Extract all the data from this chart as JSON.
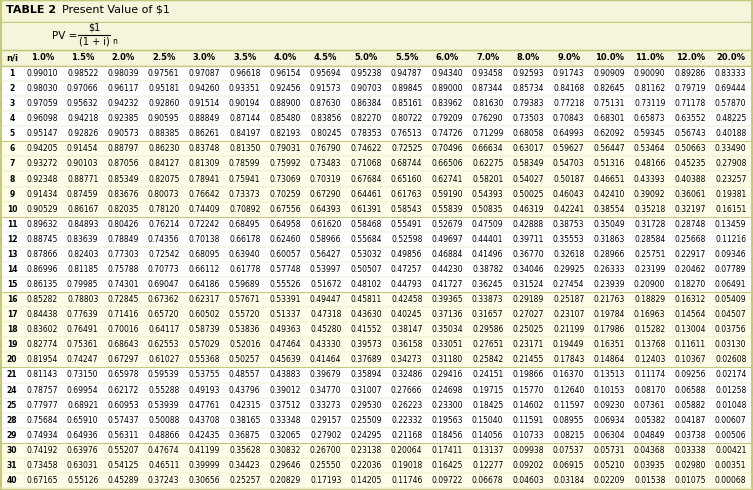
{
  "title_bold": "TABLE 2",
  "title_rest": "  Present Value of $1",
  "col_headers": [
    "n/i",
    "1.0%",
    "1.5%",
    "2.0%",
    "2.5%",
    "3.0%",
    "3.5%",
    "4.0%",
    "4.5%",
    "5.0%",
    "5.5%",
    "6.0%",
    "7.0%",
    "8.0%",
    "9.0%",
    "10.0%",
    "11.0%",
    "12.0%",
    "20.0%"
  ],
  "rows": [
    [
      1,
      0.9901,
      0.98522,
      0.98039,
      0.97561,
      0.97087,
      0.96618,
      0.96154,
      0.95694,
      0.95238,
      0.94787,
      0.9434,
      0.93458,
      0.92593,
      0.91743,
      0.90909,
      0.9009,
      0.89286,
      0.83333
    ],
    [
      2,
      0.9803,
      0.97066,
      0.96117,
      0.95181,
      0.9426,
      0.93351,
      0.92456,
      0.91573,
      0.90703,
      0.89845,
      0.89,
      0.87344,
      0.85734,
      0.84168,
      0.82645,
      0.81162,
      0.79719,
      0.69444
    ],
    [
      3,
      0.97059,
      0.95632,
      0.94232,
      0.9286,
      0.91514,
      0.90194,
      0.889,
      0.8763,
      0.86384,
      0.85161,
      0.83962,
      0.8163,
      0.79383,
      0.77218,
      0.75131,
      0.73119,
      0.71178,
      0.5787
    ],
    [
      4,
      0.96098,
      0.94218,
      0.92385,
      0.90595,
      0.88849,
      0.87144,
      0.8548,
      0.83856,
      0.8227,
      0.80722,
      0.79209,
      0.7629,
      0.73503,
      0.70843,
      0.68301,
      0.65873,
      0.63552,
      0.48225
    ],
    [
      5,
      0.95147,
      0.92826,
      0.90573,
      0.88385,
      0.86261,
      0.84197,
      0.82193,
      0.80245,
      0.78353,
      0.76513,
      0.74726,
      0.71299,
      0.68058,
      0.64993,
      0.62092,
      0.59345,
      0.56743,
      0.40188
    ],
    [
      6,
      0.94205,
      0.91454,
      0.88797,
      0.8623,
      0.83748,
      0.8135,
      0.79031,
      0.7679,
      0.74622,
      0.72525,
      0.70496,
      0.66634,
      0.63017,
      0.59627,
      0.56447,
      0.53464,
      0.50663,
      0.3349
    ],
    [
      7,
      0.93272,
      0.90103,
      0.87056,
      0.84127,
      0.81309,
      0.78599,
      0.75992,
      0.73483,
      0.71068,
      0.68744,
      0.66506,
      0.62275,
      0.58349,
      0.54703,
      0.51316,
      0.48166,
      0.45235,
      0.27908
    ],
    [
      8,
      0.92348,
      0.88771,
      0.85349,
      0.82075,
      0.78941,
      0.75941,
      0.73069,
      0.70319,
      0.67684,
      0.6516,
      0.62741,
      0.58201,
      0.54027,
      0.50187,
      0.46651,
      0.43393,
      0.40388,
      0.23257
    ],
    [
      9,
      0.91434,
      0.87459,
      0.83676,
      0.80073,
      0.76642,
      0.73373,
      0.70259,
      0.6729,
      0.64461,
      0.61763,
      0.5919,
      0.54393,
      0.50025,
      0.46043,
      0.4241,
      0.39092,
      0.36061,
      0.19381
    ],
    [
      10,
      0.90529,
      0.86167,
      0.82035,
      0.7812,
      0.74409,
      0.70892,
      0.67556,
      0.64393,
      0.61391,
      0.58543,
      0.55839,
      0.50835,
      0.46319,
      0.42241,
      0.38554,
      0.35218,
      0.32197,
      0.16151
    ],
    [
      11,
      0.89632,
      0.84893,
      0.80426,
      0.76214,
      0.72242,
      0.68495,
      0.64958,
      0.6162,
      0.58468,
      0.55491,
      0.52679,
      0.47509,
      0.42888,
      0.38753,
      0.35049,
      0.31728,
      0.28748,
      0.13459
    ],
    [
      12,
      0.88745,
      0.83639,
      0.78849,
      0.74356,
      0.70138,
      0.66178,
      0.6246,
      0.58966,
      0.55684,
      0.52598,
      0.49697,
      0.44401,
      0.39711,
      0.35553,
      0.31863,
      0.28584,
      0.25668,
      0.11216
    ],
    [
      13,
      0.87866,
      0.82403,
      0.77303,
      0.72542,
      0.68095,
      0.6394,
      0.60057,
      0.56427,
      0.53032,
      0.49856,
      0.46884,
      0.41496,
      0.3677,
      0.32618,
      0.28966,
      0.25751,
      0.22917,
      0.09346
    ],
    [
      14,
      0.86996,
      0.81185,
      0.75788,
      0.70773,
      0.66112,
      0.61778,
      0.57748,
      0.53997,
      0.50507,
      0.47257,
      0.4423,
      0.38782,
      0.34046,
      0.29925,
      0.26333,
      0.23199,
      0.20462,
      0.07789
    ],
    [
      15,
      0.86135,
      0.79985,
      0.74301,
      0.69047,
      0.64186,
      0.59689,
      0.55526,
      0.51672,
      0.48102,
      0.44793,
      0.41727,
      0.36245,
      0.31524,
      0.27454,
      0.23939,
      0.209,
      0.1827,
      0.06491
    ],
    [
      16,
      0.85282,
      0.78803,
      0.72845,
      0.67362,
      0.62317,
      0.57671,
      0.53391,
      0.49447,
      0.45811,
      0.42458,
      0.39365,
      0.33873,
      0.29189,
      0.25187,
      0.21763,
      0.18829,
      0.16312,
      0.05409
    ],
    [
      17,
      0.84438,
      0.77639,
      0.71416,
      0.6572,
      0.60502,
      0.5572,
      0.51337,
      0.47318,
      0.4363,
      0.40245,
      0.37136,
      0.31657,
      0.27027,
      0.23107,
      0.19784,
      0.16963,
      0.14564,
      0.04507
    ],
    [
      18,
      0.83602,
      0.76491,
      0.70016,
      0.64117,
      0.58739,
      0.53836,
      0.49363,
      0.4528,
      0.41552,
      0.38147,
      0.35034,
      0.29586,
      0.25025,
      0.21199,
      0.17986,
      0.15282,
      0.13004,
      0.03756
    ],
    [
      19,
      0.82774,
      0.75361,
      0.68643,
      0.62553,
      0.57029,
      0.52016,
      0.47464,
      0.4333,
      0.39573,
      0.36158,
      0.33051,
      0.27651,
      0.23171,
      0.19449,
      0.16351,
      0.13768,
      0.11611,
      0.0313
    ],
    [
      20,
      0.81954,
      0.74247,
      0.67297,
      0.61027,
      0.55368,
      0.50257,
      0.45639,
      0.41464,
      0.37689,
      0.34273,
      0.3118,
      0.25842,
      0.21455,
      0.17843,
      0.14864,
      0.12403,
      0.10367,
      0.02608
    ],
    [
      21,
      0.81143,
      0.7315,
      0.65978,
      0.59539,
      0.53755,
      0.48557,
      0.43883,
      0.39679,
      0.35894,
      0.32486,
      0.29416,
      0.24151,
      0.19866,
      0.1637,
      0.13513,
      0.11174,
      0.09256,
      0.02174
    ],
    [
      24,
      0.78757,
      0.69954,
      0.62172,
      0.55288,
      0.49193,
      0.43796,
      0.39012,
      0.3477,
      0.31007,
      0.27666,
      0.24698,
      0.19715,
      0.1577,
      0.1264,
      0.10153,
      0.0817,
      0.06588,
      0.01258
    ],
    [
      25,
      0.77977,
      0.68921,
      0.60953,
      0.53939,
      0.47761,
      0.42315,
      0.37512,
      0.33273,
      0.2953,
      0.26223,
      0.233,
      0.18425,
      0.14602,
      0.11597,
      0.0923,
      0.07361,
      0.05882,
      0.01048
    ],
    [
      28,
      0.75684,
      0.6591,
      0.57437,
      0.50088,
      0.43708,
      0.38165,
      0.33348,
      0.29157,
      0.25509,
      0.22332,
      0.19563,
      0.1504,
      0.11591,
      0.08955,
      0.06934,
      0.05382,
      0.04187,
      0.00607
    ],
    [
      29,
      0.74934,
      0.64936,
      0.56311,
      0.48866,
      0.42435,
      0.36875,
      0.32065,
      0.27902,
      0.24295,
      0.21168,
      0.18456,
      0.14056,
      0.10733,
      0.08215,
      0.06304,
      0.04849,
      0.03738,
      0.00506
    ],
    [
      30,
      0.74192,
      0.63976,
      0.55207,
      0.47674,
      0.41199,
      0.35628,
      0.30832,
      0.267,
      0.23138,
      0.20064,
      0.17411,
      0.13137,
      0.09938,
      0.07537,
      0.05731,
      0.04368,
      0.03338,
      0.00421
    ],
    [
      31,
      0.73458,
      0.63031,
      0.54125,
      0.46511,
      0.39999,
      0.34423,
      0.29646,
      0.2555,
      0.22036,
      0.19018,
      0.16425,
      0.12277,
      0.09202,
      0.06915,
      0.0521,
      0.03935,
      0.0298,
      0.00351
    ],
    [
      40,
      0.67165,
      0.55126,
      0.45289,
      0.37243,
      0.30656,
      0.25257,
      0.20829,
      0.17193,
      0.14205,
      0.11746,
      0.09722,
      0.06678,
      0.04603,
      0.03184,
      0.02209,
      0.01538,
      0.01075,
      0.00068
    ]
  ],
  "bg_cream": "#f5f5dc",
  "bg_yellow_light": "#fdfde8",
  "bg_white": "#ffffff",
  "border_outer": "#c8c87a",
  "border_inner": "#d8d8a0",
  "text_color": "#000000",
  "font_size_title": 8.0,
  "font_size_header": 6.0,
  "font_size_data": 5.5
}
